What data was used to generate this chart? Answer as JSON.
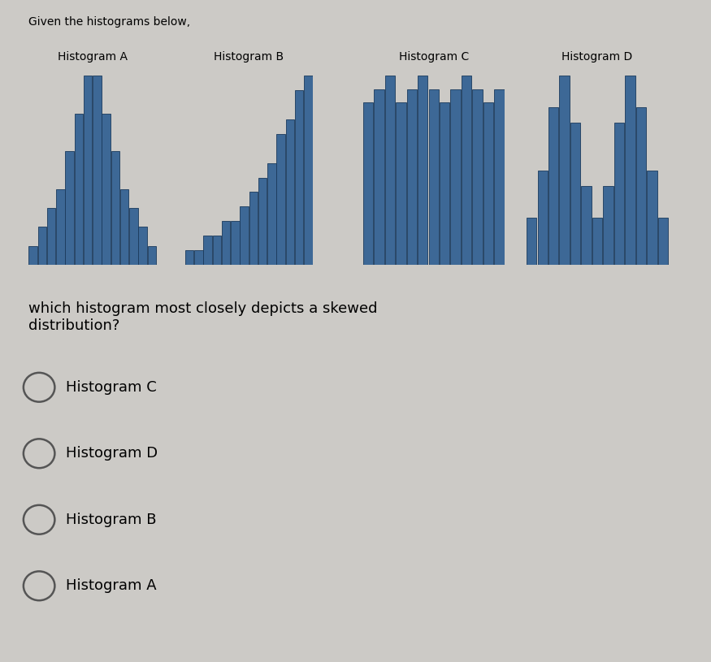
{
  "background_color": "#cccac6",
  "bar_color": "#3d6896",
  "bar_edge_color": "#1a3a5c",
  "intro_text": "Given the histograms below,",
  "question_text": "which histogram most closely depicts a skewed\ndistribution?",
  "histogram_titles": [
    "Histogram A",
    "Histogram B",
    "Histogram C",
    "Histogram D"
  ],
  "hist_A_values": [
    1,
    2,
    3,
    4,
    6,
    8,
    10,
    10,
    8,
    6,
    4,
    3,
    2,
    1
  ],
  "hist_B_values": [
    1,
    1,
    2,
    2,
    3,
    3,
    4,
    5,
    6,
    7,
    9,
    10,
    12,
    13
  ],
  "hist_C_values": [
    12,
    13,
    14,
    12,
    13,
    14,
    13,
    12,
    13,
    14,
    13,
    12,
    13
  ],
  "hist_D_values": [
    3,
    6,
    10,
    12,
    9,
    5,
    3,
    5,
    9,
    12,
    10,
    6,
    3
  ],
  "radio_options": [
    "Histogram C",
    "Histogram D",
    "Histogram B",
    "Histogram A"
  ],
  "title_fontsize": 10,
  "intro_fontsize": 10,
  "question_fontsize": 13,
  "radio_fontsize": 13,
  "radio_circle_size": 13
}
